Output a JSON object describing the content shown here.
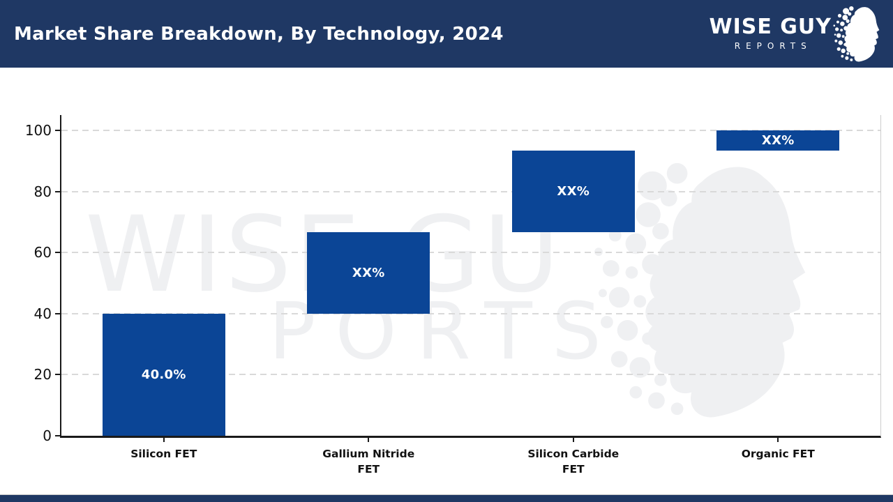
{
  "header": {
    "title": "Market Share Breakdown, By Technology, 2024",
    "logo": {
      "line1": "WISE GUY",
      "line2": "REPORTS"
    }
  },
  "watermark": {
    "line1": "WISE GU",
    "line2": "PORTS"
  },
  "colors": {
    "header_bg": "#1f3864",
    "footer_bg": "#1f3864",
    "bar_blue": "#0b4596",
    "watermark_gray": "#eff0f2",
    "gridline_gray": "#d9d9d9",
    "axis_black": "#1a1a1a"
  },
  "chart_data": {
    "type": "bar",
    "subtype": "waterfall",
    "title": "Market Share Breakdown, By Technology, 2024",
    "categories": [
      "Silicon FET",
      "Gallium Nitride\nFET",
      "Silicon Carbide\nFET",
      "Organic FET"
    ],
    "segments": [
      {
        "category": "Silicon FET",
        "start": 0,
        "end": 40,
        "label": "40.0%"
      },
      {
        "category": "Gallium Nitride\nFET",
        "start": 40,
        "end": 66.7,
        "label": "XX%"
      },
      {
        "category": "Silicon Carbide\nFET",
        "start": 66.7,
        "end": 93.3,
        "label": "XX%"
      },
      {
        "category": "Organic FET",
        "start": 93.3,
        "end": 100,
        "label": "XX%"
      }
    ],
    "xlabel": "",
    "ylabel": "",
    "ylim": [
      0,
      100
    ],
    "yticks": [
      0,
      20,
      40,
      60,
      80,
      100
    ],
    "grid": "horizontal-dashed",
    "legend": "none",
    "bar_color": "#0b4596",
    "bar_label_color": "#ffffff"
  }
}
